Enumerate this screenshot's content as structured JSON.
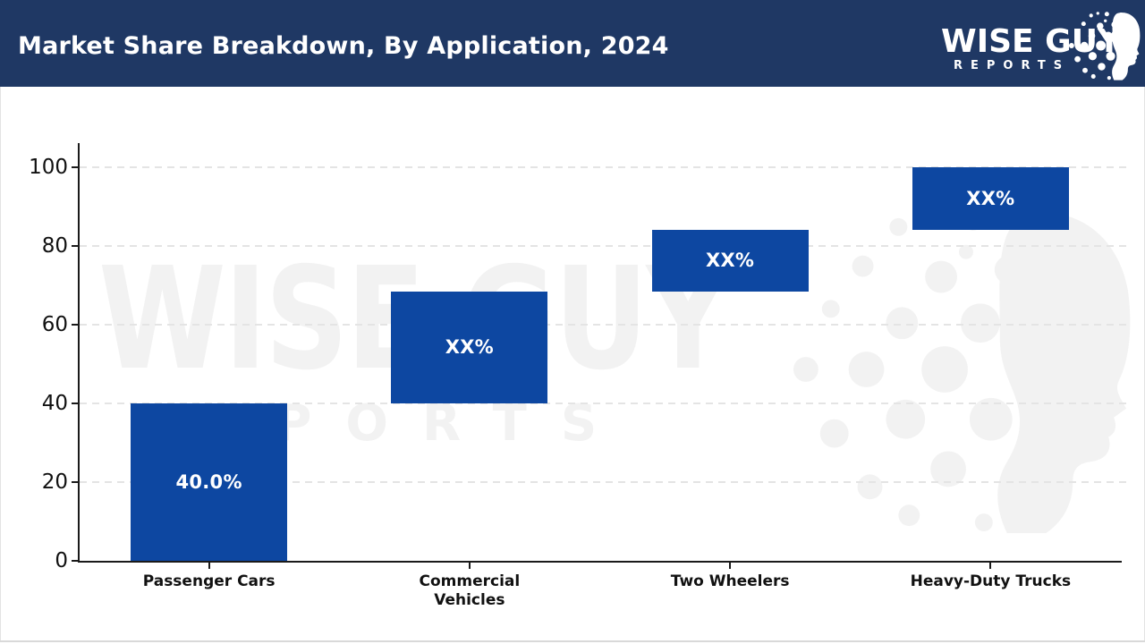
{
  "header": {
    "title": "Market Share Breakdown, By Application, 2024",
    "brand": {
      "name": "WISE GUY",
      "sub": "REPORTS"
    }
  },
  "watermark": {
    "name": "WISE GUY",
    "sub": "REPORTS"
  },
  "colors": {
    "header_bg": "#1f3864",
    "bar": "#0d47a1",
    "watermark": "#f2f2f2",
    "axis": "#1a1a1a",
    "grid": "#e4e4e4",
    "bar_label": "#ffffff",
    "title_text": "#ffffff"
  },
  "chart_data": {
    "type": "bar",
    "subtype": "waterfall",
    "title": "Market Share Breakdown, By Application, 2024",
    "categories": [
      "Passenger Cars",
      "Commercial\nVehicles",
      "Two Wheelers",
      "Heavy-Duty Trucks"
    ],
    "series": [
      {
        "name": "Passenger Cars",
        "start": 0,
        "end": 40,
        "label": "40.0%"
      },
      {
        "name": "Commercial Vehicles",
        "start": 40,
        "end": 68.5,
        "label": "XX%"
      },
      {
        "name": "Two Wheelers",
        "start": 68.5,
        "end": 84,
        "label": "XX%"
      },
      {
        "name": "Heavy-Duty Trucks",
        "start": 84,
        "end": 100,
        "label": "XX%"
      }
    ],
    "ylim": [
      0,
      100
    ],
    "yticks": [
      0,
      20,
      40,
      60,
      80,
      100
    ],
    "xlabel": "",
    "ylabel": "",
    "grid": "horizontal-dashed",
    "legend": "none"
  }
}
